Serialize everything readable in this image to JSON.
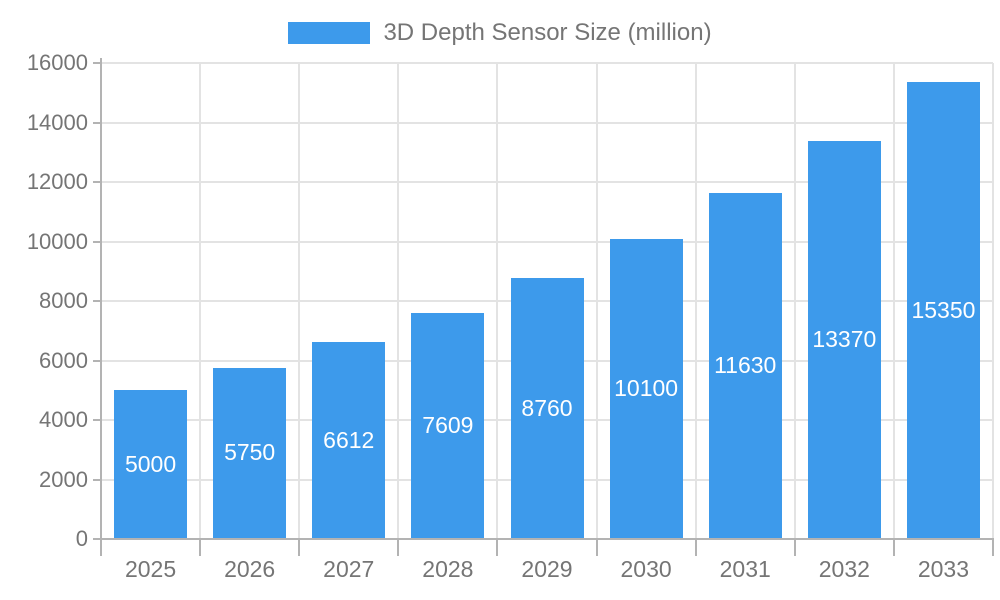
{
  "legend": {
    "label": "3D Depth Sensor Size (million)",
    "swatch_color": "#3d9aeb"
  },
  "chart_data": {
    "type": "bar",
    "title": "",
    "xlabel": "",
    "ylabel": "",
    "categories": [
      "2025",
      "2026",
      "2027",
      "2028",
      "2029",
      "2030",
      "2031",
      "2032",
      "2033"
    ],
    "series": [
      {
        "name": "3D Depth Sensor Size (million)",
        "values": [
          5000,
          5750,
          6612,
          7609,
          8760,
          10100,
          11630,
          13370,
          15350
        ],
        "color": "#3d9aeb",
        "data_labels": [
          "5000",
          "5750",
          "6612",
          "7609",
          "8760",
          "10100",
          "11630",
          "13370",
          "15350"
        ],
        "data_label_color": "#ffffff"
      }
    ],
    "ylim": [
      0,
      16000
    ],
    "ytick_step": 2000,
    "ytick_labels": [
      "0",
      "2000",
      "4000",
      "6000",
      "8000",
      "10000",
      "12000",
      "14000",
      "16000"
    ],
    "grid": true,
    "legend_position": "top-center",
    "gridline_color": "#e3e3e3",
    "axis_color": "#b3b3b3",
    "tick_label_color": "#757575",
    "background_color": "#ffffff"
  }
}
